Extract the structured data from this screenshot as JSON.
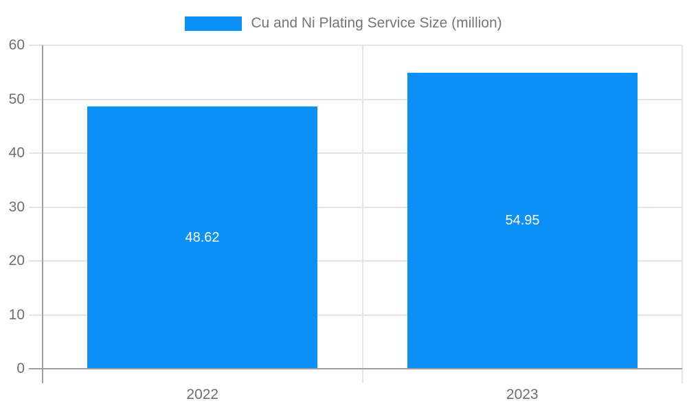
{
  "legend": {
    "label": "Cu and Ni Plating Service Size (million)",
    "swatch_color": "#0b90f8"
  },
  "chart_data": {
    "type": "bar",
    "title": "Cu and Ni Plating Service Size (million)",
    "categories": [
      "2022",
      "2023"
    ],
    "series": [
      {
        "name": "Cu and Ni Plating Service Size (million)",
        "values": [
          48.62,
          54.95
        ]
      }
    ],
    "value_labels": [
      "48.62",
      "54.95"
    ],
    "xlabel": "",
    "ylabel": "",
    "ylim": [
      0,
      60
    ],
    "yticks": [
      0,
      10,
      20,
      30,
      40,
      50,
      60
    ],
    "grid": true,
    "legend_position": "top",
    "bar_color": "#0b90f8",
    "value_label_color": "#ffffff"
  },
  "colors": {
    "background": "#ffffff",
    "grid": "#e4e4e4",
    "axis": "#9e9e9e",
    "tick_label": "#6e6e6e",
    "legend_text": "#757575"
  }
}
